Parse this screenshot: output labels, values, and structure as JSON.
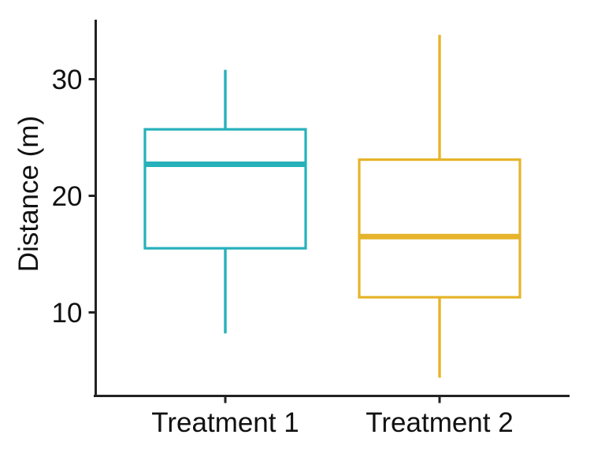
{
  "chart_data": {
    "type": "boxplot",
    "title": "",
    "xlabel": "",
    "ylabel": "Distance (m)",
    "categories": [
      "Treatment 1",
      "Treatment 2"
    ],
    "y_ticks": [
      "10",
      "20",
      "30"
    ],
    "y_tick_values": [
      10,
      20,
      30
    ],
    "ylim": [
      2.8,
      35.2
    ],
    "grid": "off",
    "legend": "none",
    "series": [
      {
        "name": "Treatment 1",
        "color": "#26b1bb",
        "min": 8.2,
        "q1": 15.5,
        "median": 22.7,
        "q3": 25.7,
        "max": 30.8
      },
      {
        "name": "Treatment 2",
        "color": "#e6b42b",
        "min": 4.4,
        "q1": 11.3,
        "median": 16.5,
        "q3": 23.1,
        "max": 33.8
      }
    ],
    "box_fill": "#ffffff",
    "axis_color": "#222222",
    "text_color": "#111111",
    "background": "#ffffff"
  }
}
